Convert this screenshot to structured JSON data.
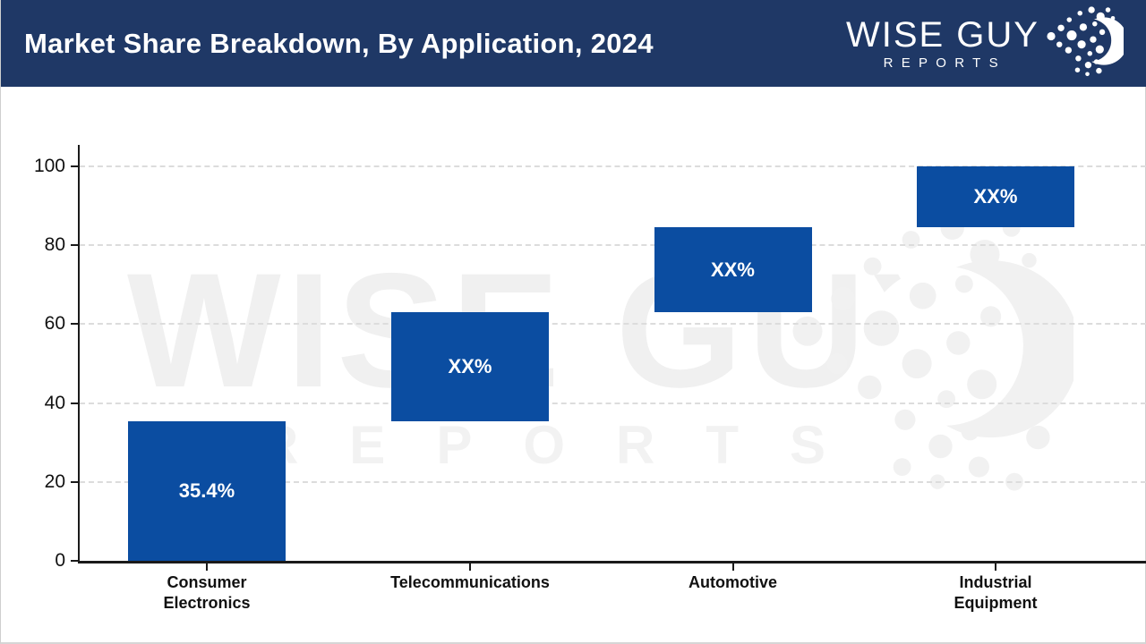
{
  "header": {
    "title": "Market Share Breakdown, By Application, 2024",
    "logo": {
      "line1": "WISE GUY",
      "line2": "REPORTS"
    }
  },
  "watermark": {
    "line1": "WISE GUY",
    "line2": "REPORTS"
  },
  "chart_data": {
    "type": "bar",
    "subtype": "floating-waterfall",
    "title": "Market Share Breakdown, By Application, 2024",
    "categories": [
      "Consumer Electronics",
      "Telecommunications",
      "Automotive",
      "Industrial Equipment"
    ],
    "categories_display": [
      "Consumer\nElectronics",
      "Telecommunications",
      "Automotive",
      "Industrial\nEquipment"
    ],
    "bars": [
      {
        "category": "Consumer Electronics",
        "label": "35.4%",
        "start": 0,
        "end": 35.4
      },
      {
        "category": "Telecommunications",
        "label": "XX%",
        "start": 35.4,
        "end": 63
      },
      {
        "category": "Automotive",
        "label": "XX%",
        "start": 63,
        "end": 84.5
      },
      {
        "category": "Industrial Equipment",
        "label": "XX%",
        "start": 84.5,
        "end": 100
      }
    ],
    "yticks": [
      0,
      20,
      40,
      60,
      80,
      100
    ],
    "ylim": [
      0,
      105
    ],
    "xlabel": "",
    "ylabel": "",
    "grid": "horizontal-dashed",
    "legend": false
  },
  "colors": {
    "header_bg": "#1f3866",
    "header_text": "#ffffff",
    "bar": "#0b4da1",
    "bar_label": "#ffffff",
    "grid": "#dcdcdc",
    "axis": "#1a1a1a",
    "watermark": "#f0f0f0"
  }
}
